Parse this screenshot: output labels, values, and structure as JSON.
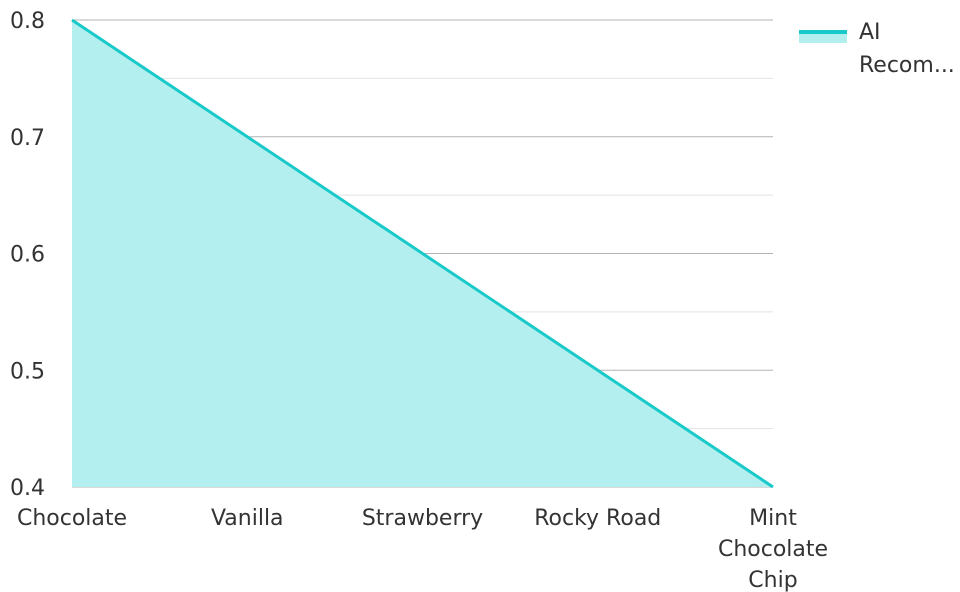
{
  "chart_data": {
    "type": "area",
    "categories": [
      "Chocolate",
      "Vanilla",
      "Strawberry",
      "Rocky Road",
      "Mint Chocolate Chip"
    ],
    "category_label_lines": [
      [
        "Chocolate"
      ],
      [
        "Vanilla"
      ],
      [
        "Strawberry"
      ],
      [
        "Rocky Road"
      ],
      [
        "Mint",
        "Chocolate",
        "Chip"
      ]
    ],
    "series": [
      {
        "name": "AI Recommendation Score",
        "values": [
          0.8,
          0.7,
          0.6,
          0.5,
          0.4
        ]
      }
    ],
    "legend_lines": [
      "AI",
      "Recom..."
    ],
    "legend_position": "top-right",
    "ylim": [
      0.4,
      0.8
    ],
    "yticks": [
      0.4,
      0.5,
      0.6,
      0.7,
      0.8
    ],
    "ytick_labels": [
      "0.4",
      "0.5",
      "0.6",
      "0.7",
      "0.8"
    ],
    "grid": true,
    "colors": {
      "line": "#19c9c9",
      "fill": "#b3efef"
    }
  }
}
